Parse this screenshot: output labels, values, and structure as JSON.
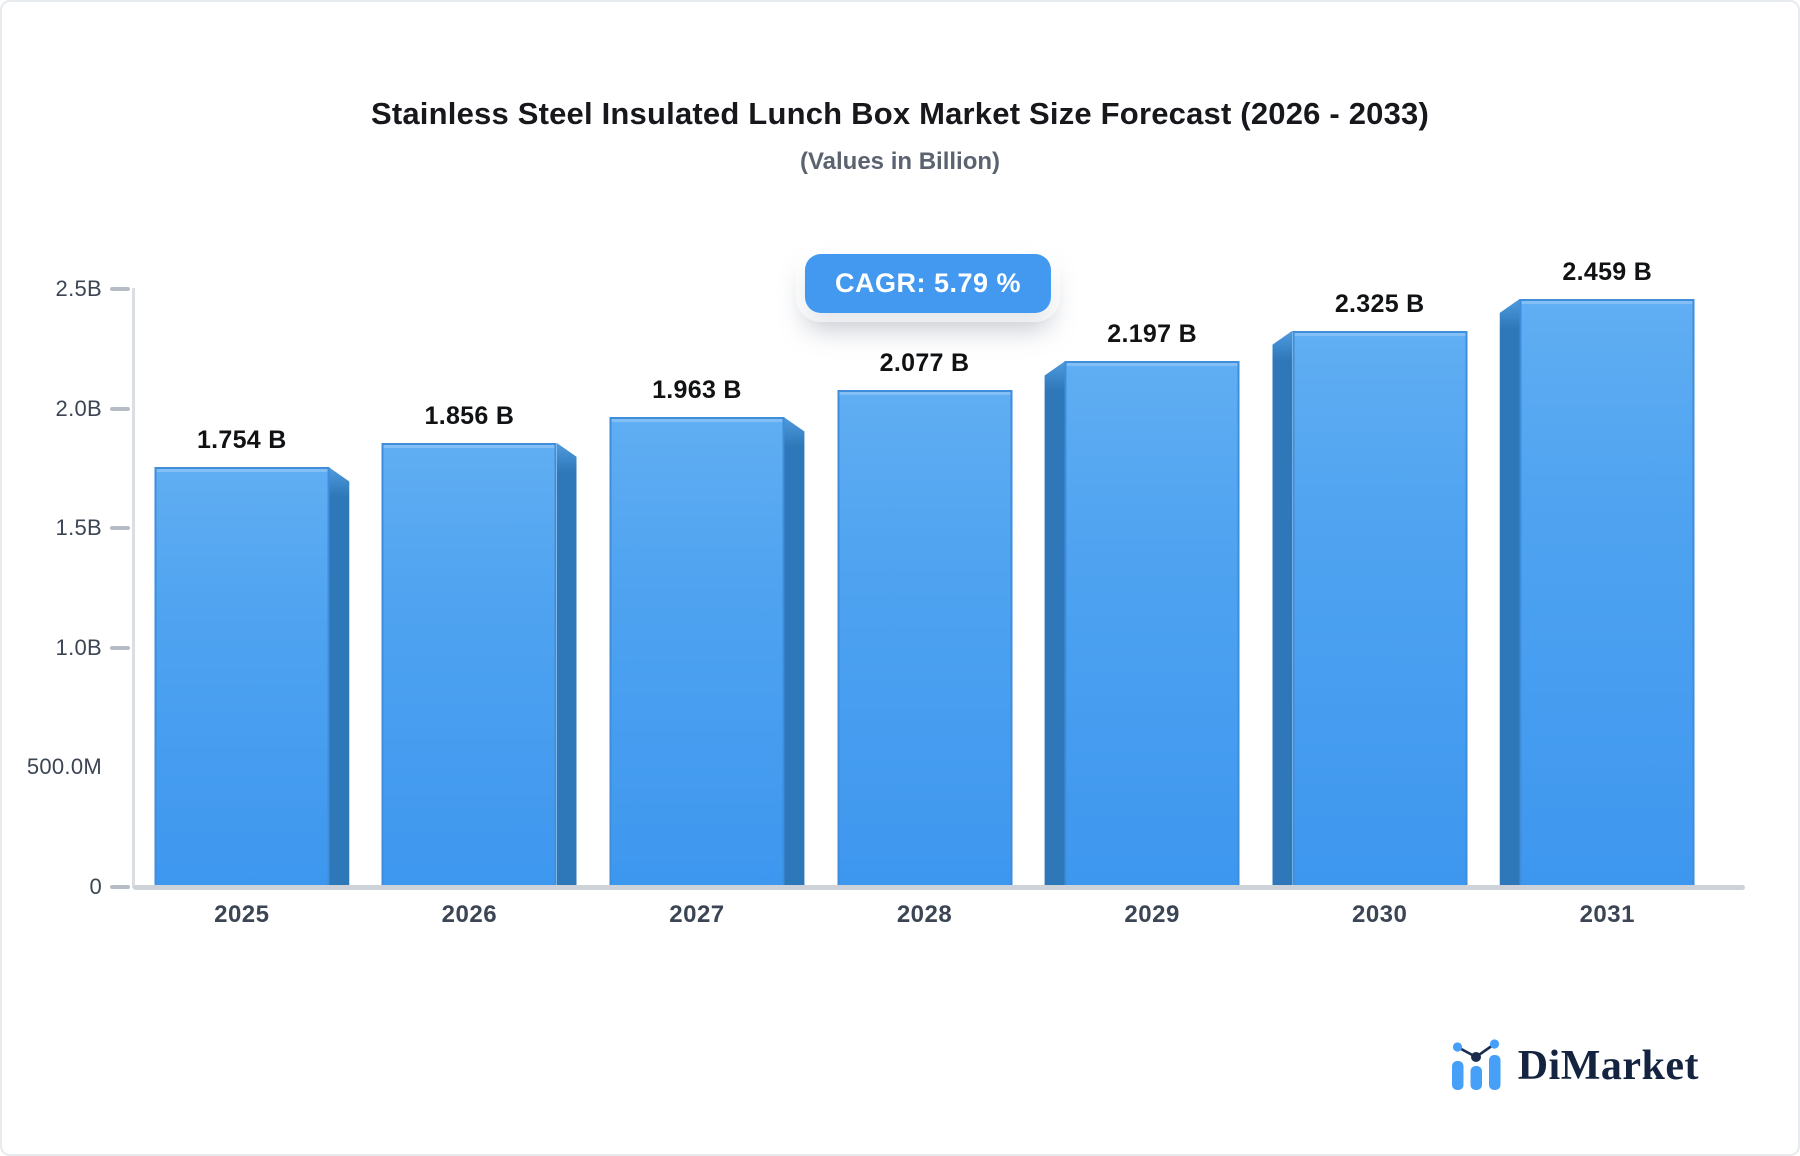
{
  "title": "Stainless Steel Insulated Lunch Box Market Size Forecast (2026 - 2033)",
  "subtitle": "(Values in Billion)",
  "badge": {
    "label": "CAGR: 5.79 %"
  },
  "logo": {
    "text": "DiMarket",
    "icon": "bar-line-chart-icon"
  },
  "colors": {
    "bar_face_top": "#60AEF3",
    "bar_face_bottom": "#3E97EF",
    "bar_face_border": "#3E8EDB",
    "bar_side": "#2E77B8",
    "badge_bg": "#4399F0",
    "badge_text": "#FFFFFF",
    "axis_line": "#DADDE2",
    "baseline": "#CED3DA",
    "tick": "#B6BCC5",
    "axis_label": "#3C4554",
    "value_label": "#101214",
    "title_text": "#17181C",
    "subtitle_text": "#5B6370",
    "logo_text": "#142340",
    "logo_blue": "#46A0F8",
    "logo_navy": "#1C2C4E",
    "background": "#FFFFFF"
  },
  "y_axis": [
    {
      "label": "2.5B",
      "value": 2.5,
      "tick": true
    },
    {
      "label": "2.0B",
      "value": 2.0,
      "tick": true
    },
    {
      "label": "1.5B",
      "value": 1.5,
      "tick": true
    },
    {
      "label": "1.0B",
      "value": 1.0,
      "tick": true
    },
    {
      "label": "500.0M",
      "value": 0.5,
      "tick": false
    },
    {
      "label": "0",
      "value": 0,
      "tick": true
    }
  ],
  "chart_data": {
    "type": "bar",
    "categories": [
      "2025",
      "2026",
      "2027",
      "2028",
      "2029",
      "2030",
      "2031"
    ],
    "values": [
      1.754,
      1.856,
      1.963,
      2.077,
      2.197,
      2.325,
      2.459
    ],
    "value_labels": [
      "1.754 B",
      "1.856 B",
      "1.963 B",
      "2.077 B",
      "2.197 B",
      "2.325 B",
      "2.459 B"
    ],
    "title": "Stainless Steel Insulated Lunch Box Market Size Forecast (2026 - 2033)",
    "subtitle": "(Values in Billion)",
    "annotation": "CAGR: 5.79 %",
    "xlabel": "",
    "ylabel": "",
    "ylim": [
      0,
      2.5
    ],
    "y_tick_labels": [
      "0",
      "500.0M",
      "1.0B",
      "1.5B",
      "2.0B",
      "2.5B"
    ],
    "grid": false,
    "legend": false,
    "bar_style": "3d-perspective"
  }
}
